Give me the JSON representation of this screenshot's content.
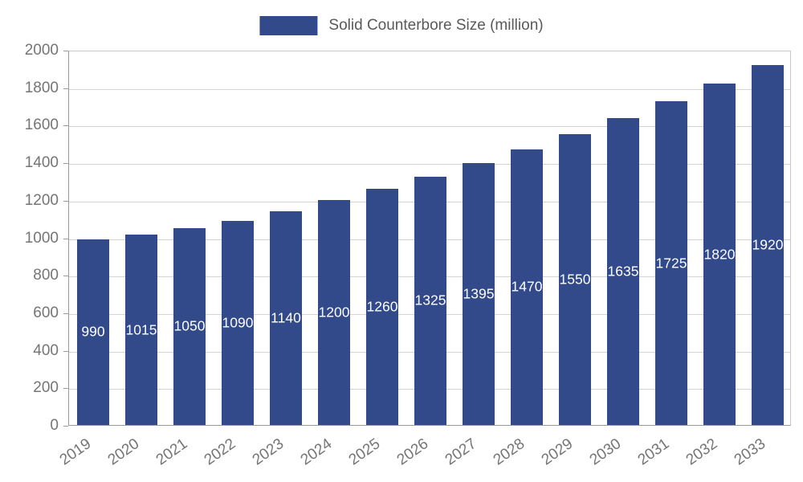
{
  "legend": {
    "label": "Solid Counterbore Size (million)",
    "swatch_color": "#32498a"
  },
  "colors": {
    "bar": "#32498a",
    "grid": "#d4d4d4",
    "axis_text": "#757575",
    "bar_label_text": "#ffffff",
    "legend_text": "#595959"
  },
  "chart_data": {
    "type": "bar",
    "title": "Solid Counterbore Size (million)",
    "categories": [
      "2019",
      "2020",
      "2021",
      "2022",
      "2023",
      "2024",
      "2025",
      "2026",
      "2027",
      "2028",
      "2029",
      "2030",
      "2031",
      "2032",
      "2033"
    ],
    "values": [
      990,
      1015,
      1050,
      1090,
      1140,
      1200,
      1260,
      1325,
      1395,
      1470,
      1550,
      1635,
      1725,
      1820,
      1920
    ],
    "value_labels": [
      "990",
      "1015",
      "1050",
      "1090",
      "1140",
      "1200",
      "1260",
      "1325",
      "1395",
      "1470",
      "1550",
      "1635",
      "1725",
      "1820",
      "1920"
    ],
    "xlabel": "",
    "ylabel": "",
    "ylim": [
      0,
      2000
    ],
    "ytick_step": 200,
    "ytick_labels": [
      "0",
      "200",
      "400",
      "600",
      "800",
      "1000",
      "1200",
      "1400",
      "1600",
      "1800",
      "2000"
    ],
    "grid": true,
    "legend_position": "top-center",
    "bar_label_position": "center-of-bar"
  }
}
